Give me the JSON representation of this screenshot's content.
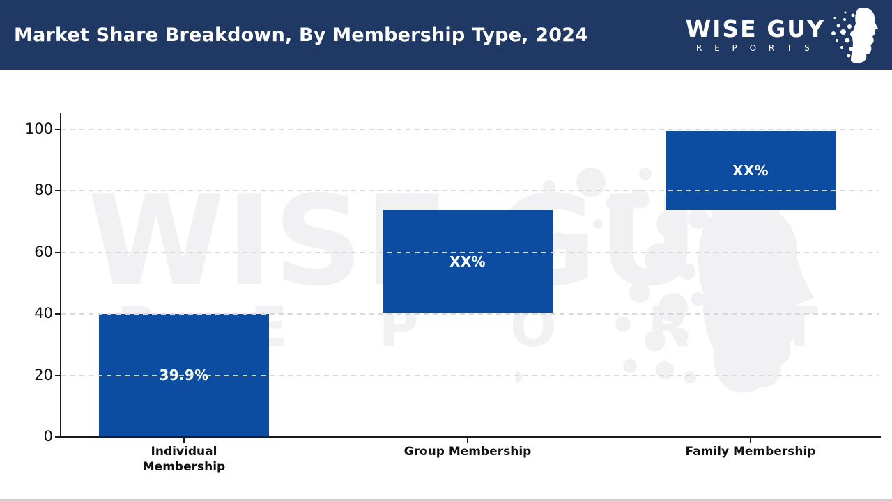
{
  "header": {
    "title": "Market Share Breakdown, By Membership Type, 2024",
    "logo": {
      "line1": "WISE GUY",
      "line2": "R E P O R T S"
    }
  },
  "watermark": {
    "line1": "WISE GUY",
    "line2": "R E P O R T S"
  },
  "chart_data": {
    "type": "bar",
    "subtype": "floating-segment-bars",
    "title": "Market Share Breakdown, By Membership Type, 2024",
    "categories": [
      "Individual\nMembership",
      "Group Membership",
      "Family Membership"
    ],
    "series": [
      {
        "name": "Individual Membership",
        "start": 0,
        "end": 39.9,
        "value_label": "39.9%"
      },
      {
        "name": "Group Membership",
        "start": 40,
        "end": 73.5,
        "value_label": "XX%"
      },
      {
        "name": "Family Membership",
        "start": 73.5,
        "end": 99.4,
        "value_label": "XX%"
      }
    ],
    "xlabel": "",
    "ylabel": "",
    "yticks": [
      0,
      20,
      40,
      60,
      80,
      100
    ],
    "ylim": [
      0,
      104.8
    ],
    "grid": "horizontal-dashed",
    "legend": "none",
    "bar_color": "#0c4da2",
    "bar_label_color": "#ffffff"
  },
  "colors": {
    "header_bg": "#1f3864",
    "bar": "#0c4da2",
    "axis": "#1a1a1a",
    "grid_line": "#d9d9d9",
    "tick_label": "#111111",
    "watermark": "#f1f1f4",
    "bottom_rule": "#cfcfcf"
  }
}
